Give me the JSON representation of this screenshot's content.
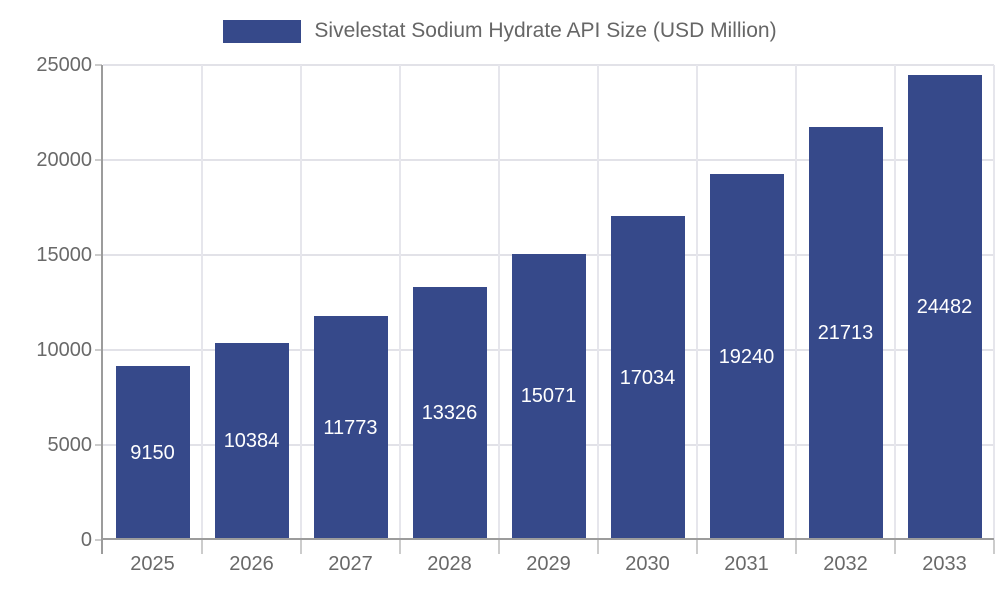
{
  "chart_data": {
    "type": "bar",
    "title": "Sivelestat Sodium Hydrate API Size (USD Million)",
    "series_name": "Sivelestat Sodium Hydrate API Size (USD Million)",
    "categories": [
      "2025",
      "2026",
      "2027",
      "2028",
      "2029",
      "2030",
      "2031",
      "2032",
      "2033"
    ],
    "values": [
      9150,
      10384,
      11773,
      13326,
      15071,
      17034,
      19240,
      21713,
      24482
    ],
    "xlabel": "",
    "ylabel": "",
    "ylim": [
      0,
      25000
    ],
    "y_ticks": [
      0,
      5000,
      10000,
      15000,
      20000,
      25000
    ],
    "grid": true,
    "legend_position": "top",
    "bar_label_position": "inside-center"
  },
  "legend": {
    "label": "Sivelestat Sodium Hydrate API Size (USD Million)"
  },
  "colors": {
    "bar": "#36498A",
    "bar_label": "#FFFFFF",
    "axis": "#9C9C9C",
    "grid_h": "#E2E2E8",
    "grid_v": "#E6E6EC",
    "tick": "#CCCCCC",
    "text": "#696969",
    "legend_text": "#666666",
    "background": "#FFFFFF"
  }
}
